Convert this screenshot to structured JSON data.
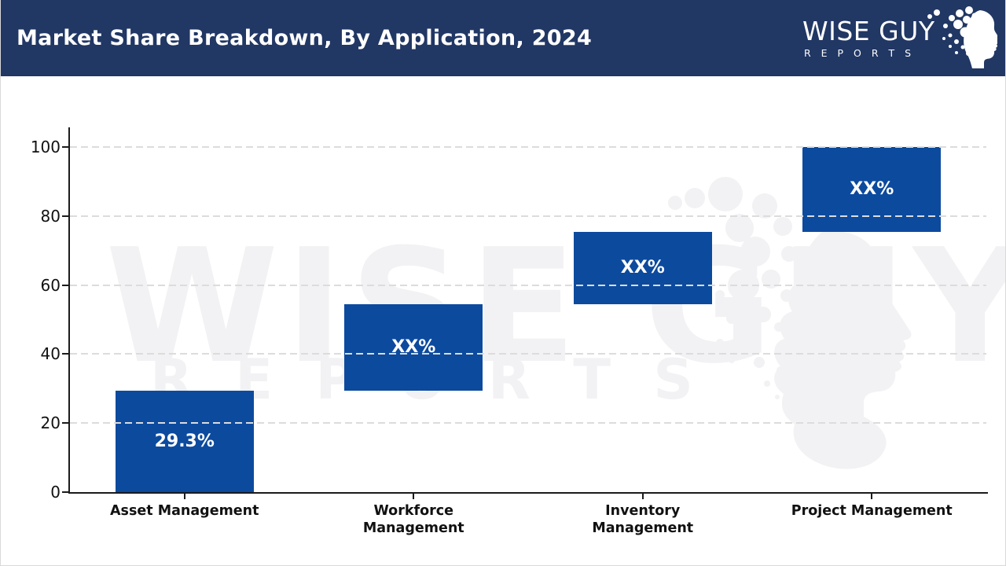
{
  "header": {
    "title": "Market Share Breakdown, By Application, 2024",
    "bg_color": "#213764",
    "logo": {
      "line1": "WISE GUY",
      "line2": "R E P O R T S"
    }
  },
  "watermark": {
    "line1": "WISE GUY",
    "line2": "R E P O R T S"
  },
  "chart_data": {
    "type": "bar",
    "subtype": "waterfall",
    "title": "Market Share Breakdown, By Application, 2024",
    "categories": [
      "Asset Management",
      "Workforce\nManagement",
      "Inventory\nManagement",
      "Project Management"
    ],
    "series": [
      {
        "name": "Market Share",
        "segments": [
          {
            "category": "Asset Management",
            "start": 0,
            "end": 29.3,
            "label": "29.3%"
          },
          {
            "category": "Workforce Management",
            "start": 29.3,
            "end": 54.4,
            "label": "XX%"
          },
          {
            "category": "Inventory Management",
            "start": 54.4,
            "end": 75.5,
            "label": "XX%"
          },
          {
            "category": "Project Management",
            "start": 75.5,
            "end": 100,
            "label": "XX%"
          }
        ]
      }
    ],
    "xlabel": "",
    "ylabel": "",
    "ylim": [
      0,
      100
    ],
    "yticks": [
      0,
      20,
      40,
      60,
      80,
      100
    ],
    "grid": "horizontal-dashed",
    "legend": "none",
    "bar_color": "#0c4a9e",
    "bar_label_color": "#ffffff",
    "axis_color": "#1b1b1b",
    "gridline_color": "#dcdcdc"
  }
}
